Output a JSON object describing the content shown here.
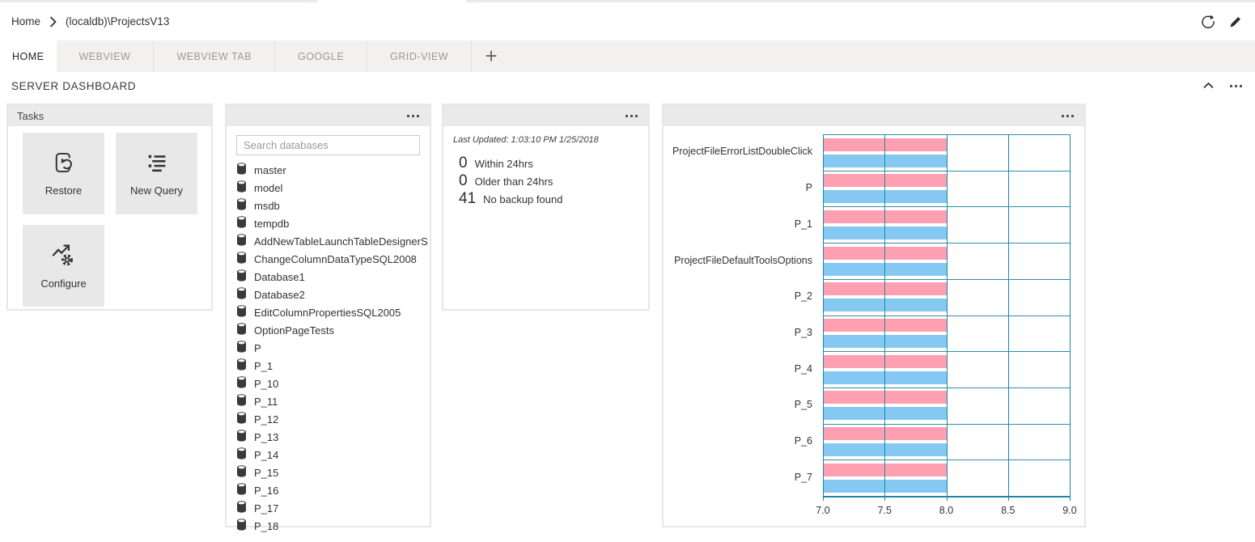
{
  "breadcrumb": {
    "home": "Home",
    "server": "(localdb)\\ProjectsV13"
  },
  "tabs": {
    "items": [
      {
        "label": "HOME",
        "active": true
      },
      {
        "label": "WEBVIEW",
        "active": false
      },
      {
        "label": "WEBVIEW TAB",
        "active": false
      },
      {
        "label": "GOOGLE",
        "active": false
      },
      {
        "label": "GRID-VIEW",
        "active": false
      }
    ],
    "add_label": "+"
  },
  "dashboard": {
    "title": "SERVER DASHBOARD"
  },
  "tasks": {
    "header": "Tasks",
    "buttons": [
      {
        "label": "Restore",
        "icon": "restore-icon"
      },
      {
        "label": "New Query",
        "icon": "new-query-icon"
      },
      {
        "label": "Configure",
        "icon": "configure-icon"
      }
    ]
  },
  "databases": {
    "search_placeholder": "Search databases",
    "items": [
      "master",
      "model",
      "msdb",
      "tempdb",
      "AddNewTableLaunchTableDesignerS",
      "ChangeColumnDataTypeSQL2008",
      "Database1",
      "Database2",
      "EditColumnPropertiesSQL2005",
      "OptionPageTests",
      "P",
      "P_1",
      "P_10",
      "P_11",
      "P_12",
      "P_13",
      "P_14",
      "P_15",
      "P_16",
      "P_17",
      "P_18"
    ]
  },
  "backup": {
    "last_updated": "Last Updated: 1:03:10 PM 1/25/2018",
    "stats": [
      {
        "value": "0",
        "label": "Within 24hrs"
      },
      {
        "value": "0",
        "label": "Older than 24hrs"
      },
      {
        "value": "41",
        "label": "No backup found"
      }
    ]
  },
  "chart_data": {
    "type": "bar",
    "orientation": "horizontal",
    "title": "",
    "categories": [
      "ProjectFileErrorListDoubleClick",
      "P",
      "P_1",
      "ProjectFileDefaultToolsOptions",
      "P_2",
      "P_3",
      "P_4",
      "P_5",
      "P_6",
      "P_7"
    ],
    "series": [
      {
        "name": "series-pink",
        "color": "#FF9FB2",
        "values": [
          8.0,
          8.0,
          8.0,
          8.0,
          8.0,
          8.0,
          8.0,
          8.0,
          8.0,
          8.0
        ]
      },
      {
        "name": "series-blue",
        "color": "#85C8F2",
        "values": [
          8.0,
          8.0,
          8.0,
          8.0,
          8.0,
          8.0,
          8.0,
          8.0,
          8.0,
          8.0
        ]
      }
    ],
    "xlim": [
      7.0,
      9.0
    ],
    "xticks": [
      "7.0",
      "7.5",
      "8.0",
      "8.5",
      "9.0"
    ],
    "grid": true,
    "legend": "none"
  },
  "colors": {
    "bar_pink": "#FF9FB2",
    "bar_blue": "#85C8F2",
    "grid_teal": "#1E87A3"
  }
}
